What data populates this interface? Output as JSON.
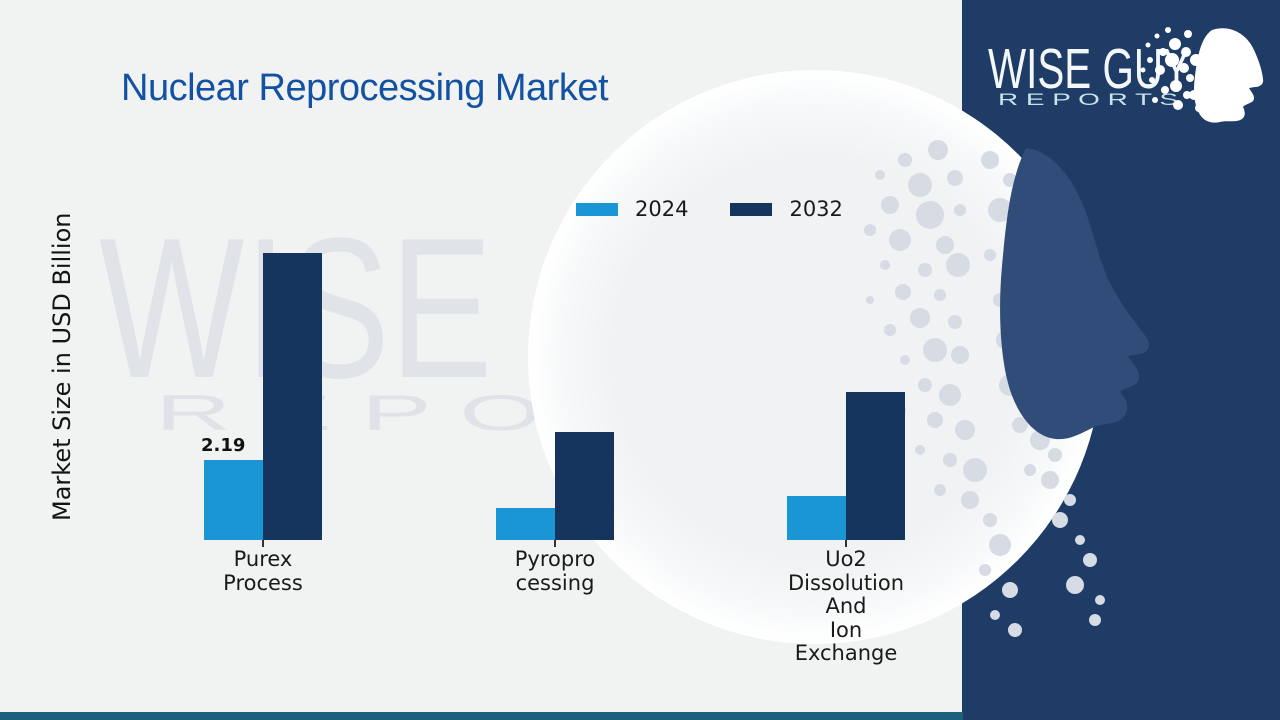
{
  "colors": {
    "background": "#f1f2f2",
    "title": "#1351a3",
    "series_2024": "#1b96d5",
    "series_2032": "#15355e",
    "side_panel": "#1e3c66",
    "face_silhouette": "#2f4d78",
    "bottom_bar": "#19617c",
    "watermark_text": "#e0e3e8",
    "logo_text": "#f4f8fa",
    "logo_reports_text": "#c9e3ea"
  },
  "brand_watermark": {
    "line1": "WISE GUY",
    "line2": "R E P O R T S"
  },
  "brand_logo": {
    "line1": "WISE GUY",
    "line2": "R E P O R T S"
  },
  "chart_data": {
    "type": "bar",
    "title": "Nuclear Reprocessing Market",
    "xlabel": "",
    "ylabel": "Market Size in USD Billion",
    "categories": [
      "Purex Process",
      "Pyroprocessing",
      "Uo2 Dissolution And Ion Exchange"
    ],
    "category_label_lines": [
      [
        "Purex",
        "Process"
      ],
      [
        "Pyropro",
        "cessing"
      ],
      [
        "Uo2",
        "Dissolution",
        "And",
        "Ion",
        "Exchange"
      ]
    ],
    "series": [
      {
        "name": "2024",
        "color": "#1b96d5",
        "values": [
          2.19,
          0.88,
          1.2
        ]
      },
      {
        "name": "2032",
        "color": "#15355e",
        "values": [
          7.86,
          2.96,
          4.05
        ]
      }
    ],
    "data_labels": [
      {
        "series": "2024",
        "category": "Purex Process",
        "category_index": 0,
        "text": "2.19"
      }
    ],
    "legend": {
      "position": "top",
      "entries": [
        "2024",
        "2032"
      ]
    },
    "grid": false,
    "ylim": [
      0,
      8.6
    ]
  }
}
